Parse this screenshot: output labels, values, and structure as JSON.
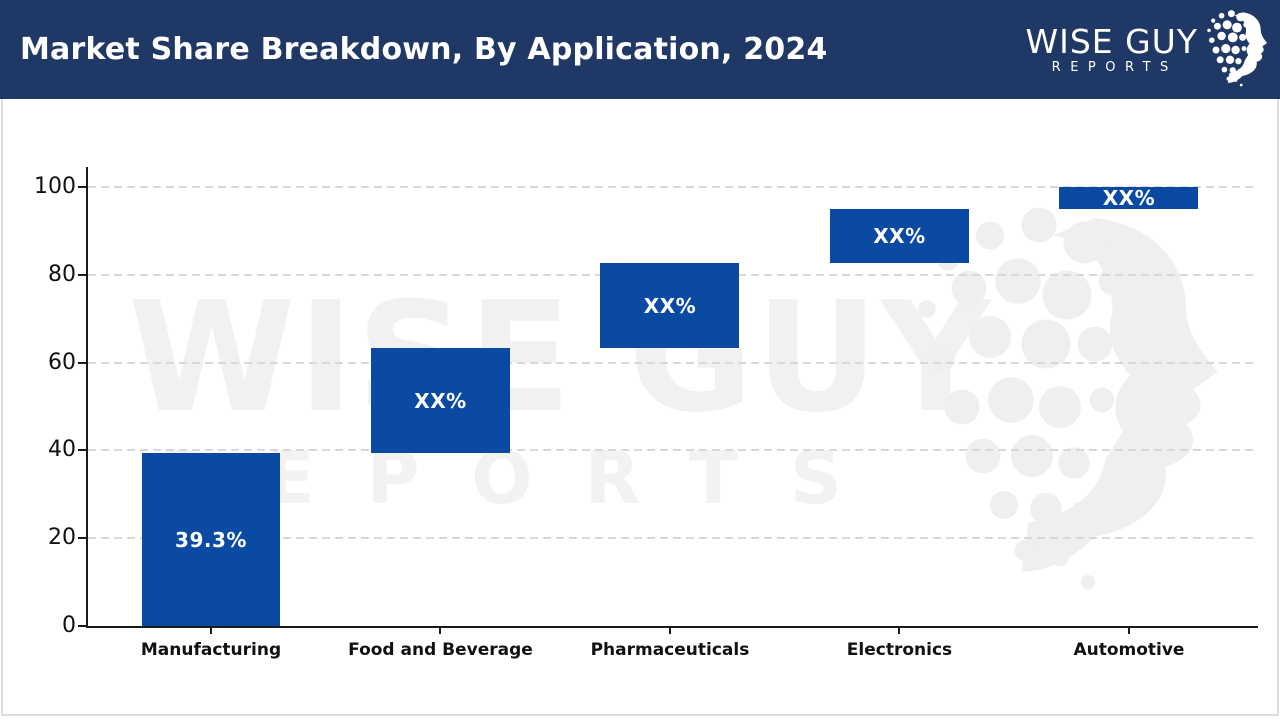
{
  "header": {
    "title": "Market Share Breakdown, By Application, 2024",
    "logo": {
      "line1": "WISE GUY",
      "line2": "REPORTS"
    }
  },
  "watermark": {
    "line1": "WISE GUY",
    "line2": "REPORTS"
  },
  "colors": {
    "header_bg": "#203865",
    "bar": "#0b4aa2",
    "bar_label": "#ffffff",
    "grid": "#d8d8d8",
    "axis": "#1a1a1a",
    "watermark": "#f1f1f1"
  },
  "chart_data": {
    "type": "bar",
    "subtype": "floating-waterfall",
    "title": "Market Share Breakdown, By Application, 2024",
    "categories": [
      "Manufacturing",
      "Food and Beverage",
      "Pharmaceuticals",
      "Electronics",
      "Automotive"
    ],
    "series": [
      {
        "name": "Market share (%)",
        "segments": [
          {
            "start": 0,
            "end": 39.3,
            "label": "39.3%"
          },
          {
            "start": 39.3,
            "end": 63.3,
            "label": "XX%"
          },
          {
            "start": 63.3,
            "end": 82.6,
            "label": "XX%"
          },
          {
            "start": 82.6,
            "end": 95.0,
            "label": "XX%"
          },
          {
            "start": 95.0,
            "end": 100.0,
            "label": "XX%"
          }
        ]
      }
    ],
    "yticks": [
      0,
      20,
      40,
      60,
      80,
      100
    ],
    "ylim": [
      0,
      104.3
    ],
    "xlabel": "",
    "ylabel": "",
    "grid": "horizontal-dashed",
    "legend": "none"
  }
}
